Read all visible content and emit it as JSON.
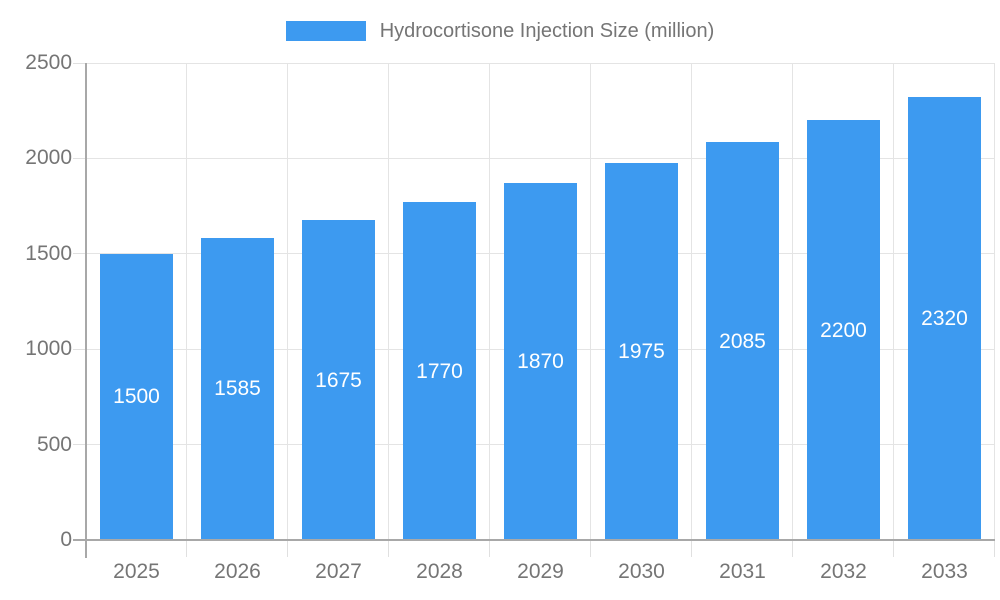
{
  "chart_data": {
    "type": "bar",
    "title": "Hydrocortisone Injection Size (million)",
    "categories": [
      "2025",
      "2026",
      "2027",
      "2028",
      "2029",
      "2030",
      "2031",
      "2032",
      "2033"
    ],
    "values": [
      1500,
      1585,
      1675,
      1770,
      1870,
      1975,
      2085,
      2200,
      2320
    ],
    "xlabel": "",
    "ylabel": "",
    "ylim": [
      0,
      2500
    ],
    "yticks": [
      0,
      500,
      1000,
      1500,
      2000,
      2500
    ],
    "grid": true,
    "legend_position": "top-center",
    "value_labels_position": "inside-center",
    "colors": {
      "bar": "#3d9af0",
      "grid": "#e4e4e4",
      "tick": "#e0e0e0",
      "axis": "#a8a8a8",
      "text": "#757575",
      "value_label": "#ffffff",
      "background": "#ffffff"
    }
  },
  "legend": {
    "label": "Hydrocortisone Injection Size (million)"
  }
}
